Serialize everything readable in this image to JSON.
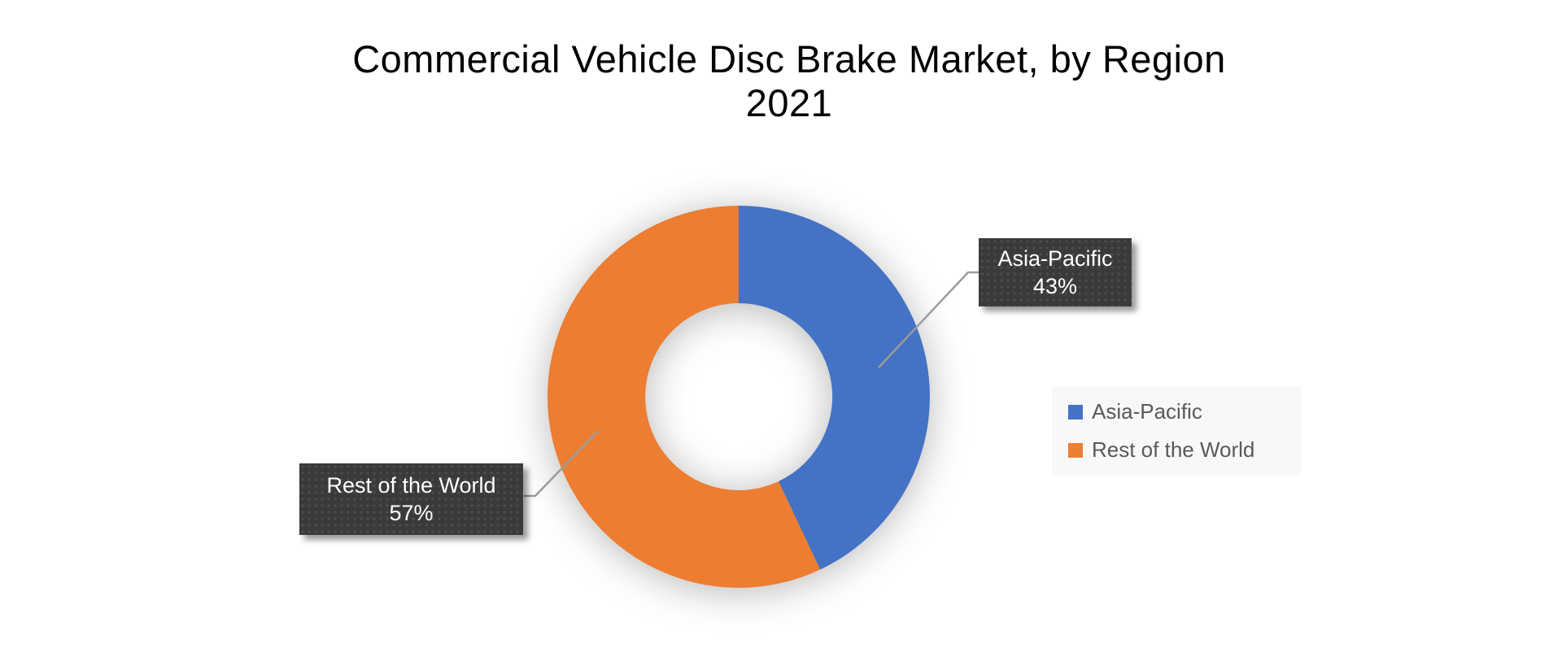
{
  "title": {
    "line1": "Commercial Vehicle Disc Brake Market, by Region",
    "line2": "2021"
  },
  "chart_data": {
    "type": "pie",
    "subtype": "donut",
    "title": "Commercial Vehicle Disc Brake Market, by Region 2021",
    "categories": [
      "Asia-Pacific",
      "Rest of the World"
    ],
    "values": [
      43,
      57
    ],
    "unit": "percent",
    "colors": [
      "#4472C4",
      "#ED7D31"
    ],
    "start_angle_deg": 0,
    "direction": "clockwise",
    "inner_radius_ratio": 0.49,
    "legend_position": "right",
    "data_labels": [
      "Asia-Pacific 43%",
      "Rest of the World 57%"
    ]
  },
  "callouts": [
    {
      "label": "Asia-Pacific",
      "value": "43%"
    },
    {
      "label": "Rest of the World",
      "value": "57%"
    }
  ],
  "legend": {
    "items": [
      {
        "label": "Asia-Pacific",
        "color": "#4472C4"
      },
      {
        "label": "Rest of the World",
        "color": "#ED7D31"
      }
    ]
  },
  "colors": {
    "slice_blue": "#4472C4",
    "slice_orange": "#ED7D31",
    "callout_background": "#3A3A3A",
    "callout_text": "#FFFFFF",
    "leader_line": "#9C9C9A",
    "legend_text": "#595959",
    "legend_background": "#F8F8F8",
    "title_text": "#000000",
    "page_background": "#FFFFFF"
  }
}
